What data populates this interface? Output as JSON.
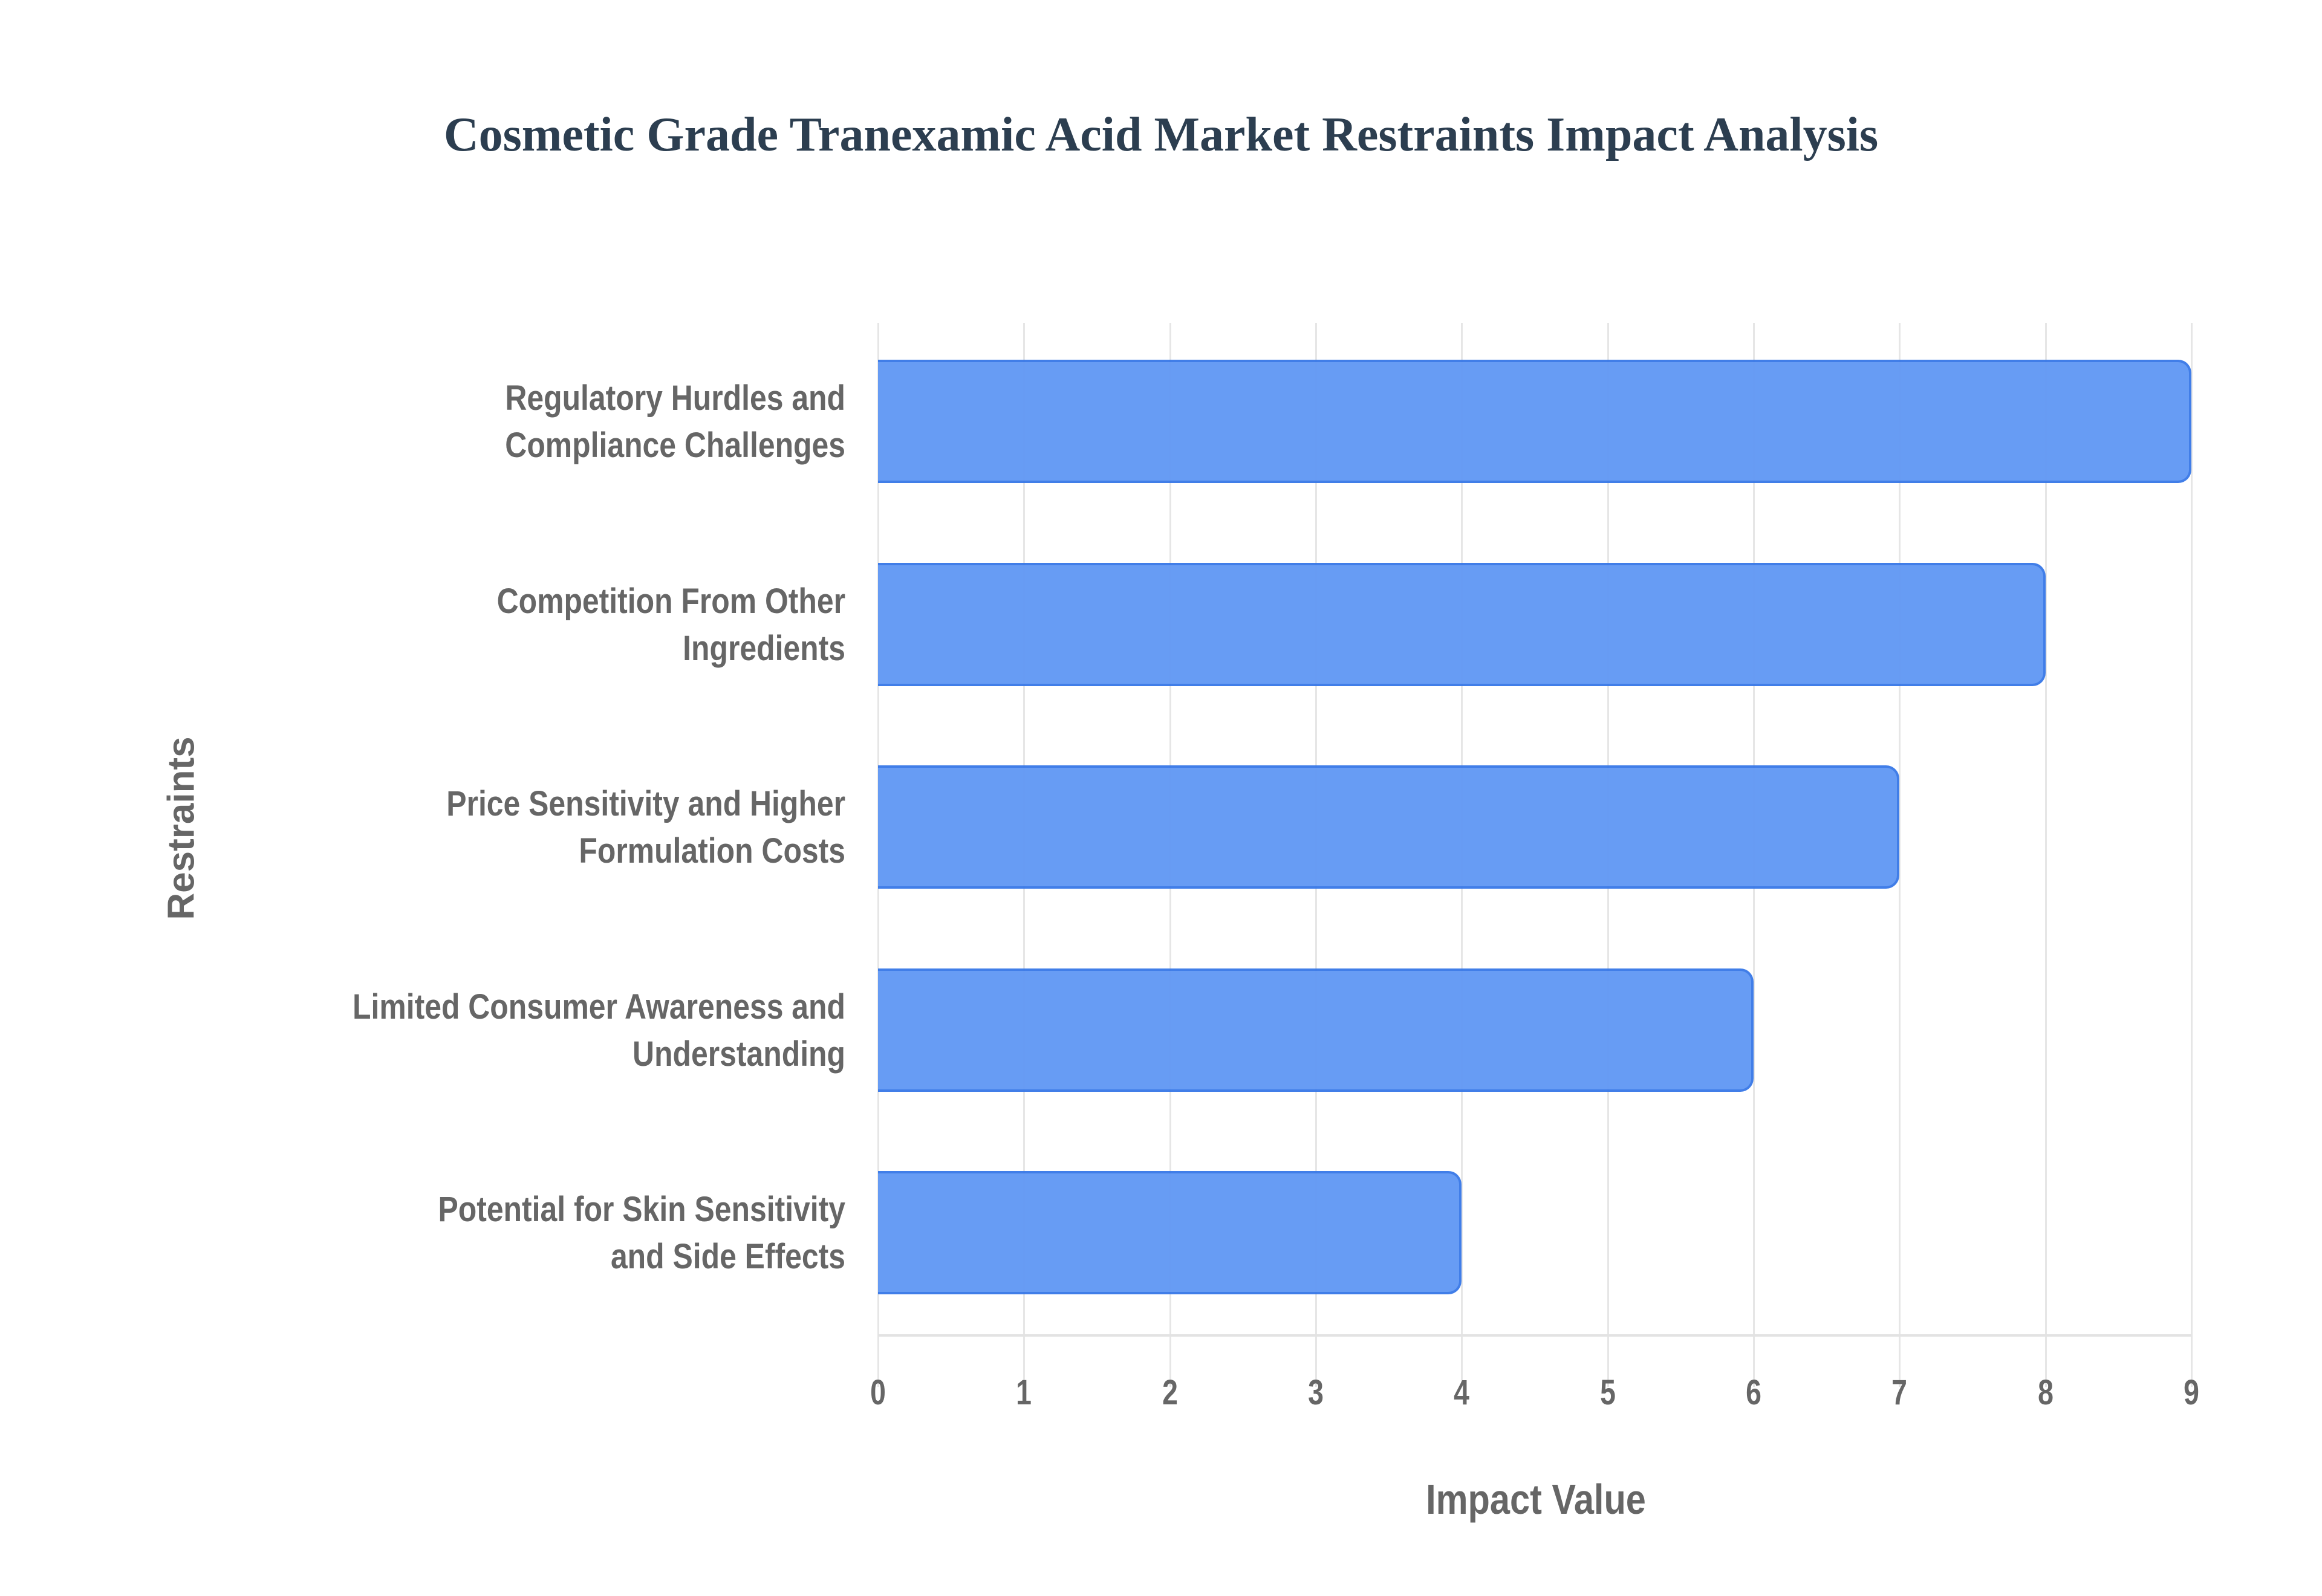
{
  "chart_data": {
    "type": "bar",
    "orientation": "horizontal",
    "title": "Cosmetic Grade Tranexamic Acid Market Restraints Impact Analysis",
    "xlabel": "Impact Value",
    "ylabel": "Restraints",
    "categories": [
      "Regulatory Hurdles and Compliance Challenges",
      "Competition From Other Ingredients",
      "Price Sensitivity and Higher Formulation Costs",
      "Limited Consumer Awareness and Understanding",
      "Potential for Skin Sensitivity and Side Effects"
    ],
    "values": [
      9,
      8,
      7,
      6,
      4
    ],
    "xlim": [
      0,
      9
    ],
    "xticks": [
      "0",
      "1",
      "2",
      "3",
      "4",
      "5",
      "6",
      "7",
      "8",
      "9"
    ],
    "grid": true,
    "legend": false,
    "bar_color": "#6399f4",
    "bar_border_color": "#3b7ae8"
  },
  "labels": {
    "cat0_l1": "Regulatory Hurdles and",
    "cat0_l2": "Compliance Challenges",
    "cat1_l1": "Competition From Other",
    "cat1_l2": "Ingredients",
    "cat2_l1": "Price Sensitivity and Higher",
    "cat2_l2": "Formulation Costs",
    "cat3_l1": "Limited Consumer Awareness and",
    "cat3_l2": "Understanding",
    "cat4_l1": "Potential for Skin Sensitivity",
    "cat4_l2": "and Side Effects"
  }
}
